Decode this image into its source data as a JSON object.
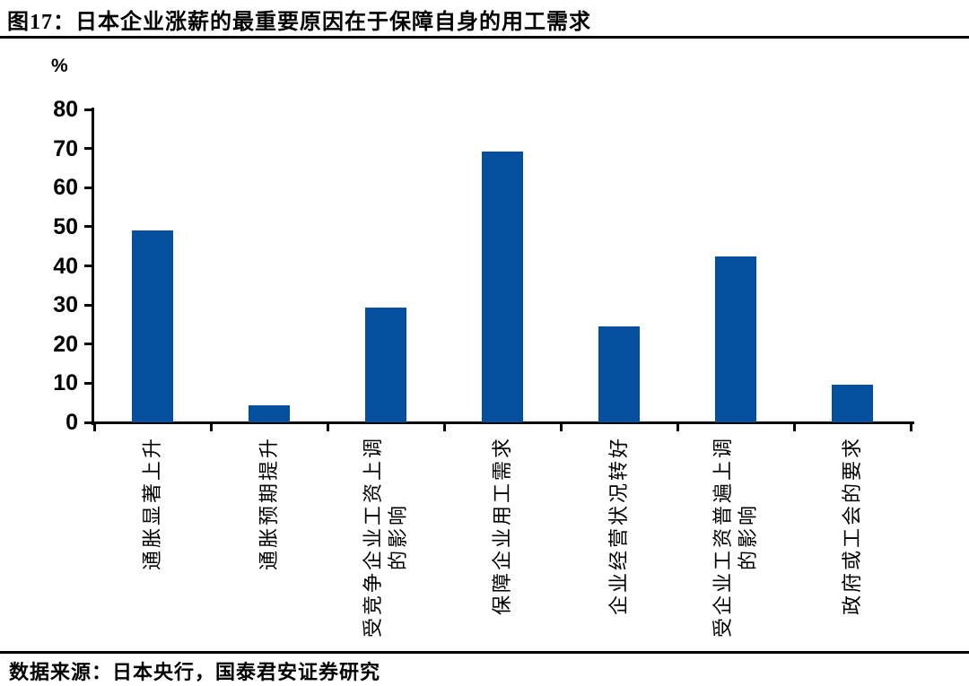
{
  "title": "图17：日本企业涨薪的最重要原因在于保障自身的用工需求",
  "footer": "数据来源：日本央行，国泰君安证券研究",
  "colors": {
    "bar": "#05509E",
    "axis": "#000000",
    "text": "#000000",
    "background": "#ffffff"
  },
  "chart_data": {
    "type": "bar",
    "title": "图17：日本企业涨薪的最重要原因在于保障自身的用工需求",
    "xlabel": "",
    "ylabel": "%",
    "ylim": [
      0,
      80
    ],
    "yticks": [
      0,
      10,
      20,
      30,
      40,
      50,
      60,
      70,
      80
    ],
    "grid": false,
    "legend": "none",
    "categories": [
      "通胀显著上升",
      "通胀预期提升",
      "受竞争企业工资上调\n的影响",
      "保障企业用工需求",
      "企业经营状况转好",
      "受企业工资普遍上调\n的影响",
      "政府或工会的要求"
    ],
    "values": [
      49.0,
      4.4,
      29.4,
      69.3,
      24.5,
      42.4,
      9.6
    ],
    "bar_color": "#05509E",
    "source_note": "数据来源：日本央行，国泰君安证券研究"
  }
}
